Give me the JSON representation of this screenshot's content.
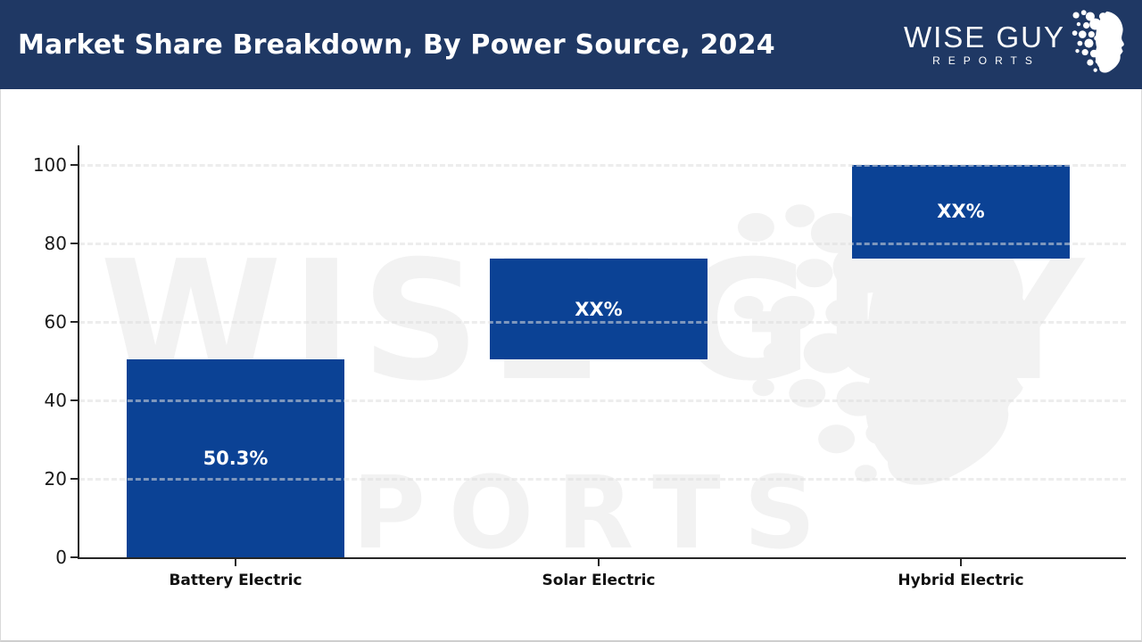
{
  "header": {
    "title": "Market Share Breakdown, By Power Source, 2024",
    "bg_color": "#1f3864",
    "logo": {
      "line1": "WISE GUY",
      "line2": "REPORTS"
    }
  },
  "watermark": {
    "line1": "WISE GUY",
    "line2": "REPORTS"
  },
  "chart_data": {
    "type": "bar",
    "subtype": "waterfall",
    "title": "Market Share Breakdown, By Power Source, 2024",
    "categories": [
      "Battery Electric",
      "Solar Electric",
      "Hybrid Electric"
    ],
    "segments": [
      {
        "category": "Battery Electric",
        "start": 0,
        "end": 50.3,
        "label": "50.3%"
      },
      {
        "category": "Solar Electric",
        "start": 50.3,
        "end": 76,
        "label": "XX%"
      },
      {
        "category": "Hybrid Electric",
        "start": 76,
        "end": 100,
        "label": "XX%"
      }
    ],
    "xlabel": "",
    "ylabel": "",
    "yticks": [
      0,
      20,
      40,
      60,
      80,
      100
    ],
    "ylim": [
      0,
      105
    ],
    "grid": "horizontal-dashed",
    "legend": "none",
    "bar_color": "#0b4295",
    "bar_label_color": "#ffffff"
  }
}
